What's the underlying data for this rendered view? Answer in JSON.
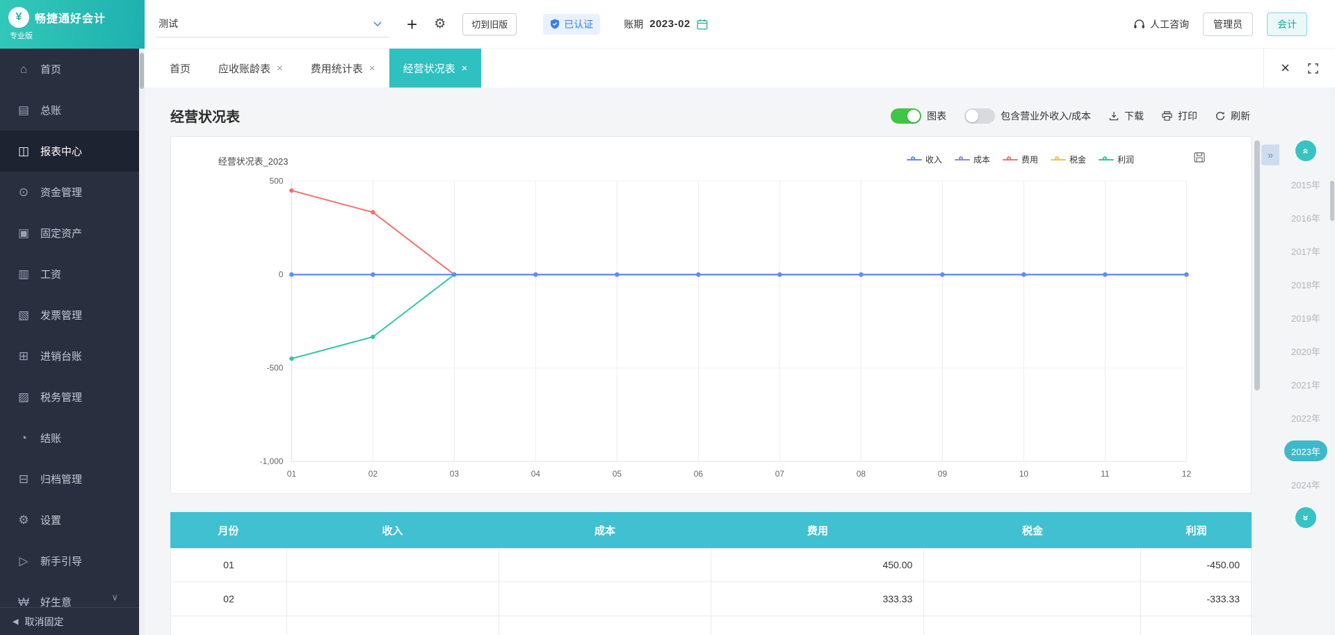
{
  "app": {
    "logo_title": "畅捷通好会计",
    "logo_subtitle": "专业版"
  },
  "icons": {
    "logo_glyph": "¥",
    "plus": "+",
    "gear": "⚙",
    "unpin": "◀",
    "more_chevron": "∨",
    "tab_close": "×",
    "panel_close": "×",
    "collapse_handle": "»",
    "scroll_up": "«",
    "scroll_down": "»"
  },
  "colors": {
    "brand_teal": "#2fc0c0",
    "sidebar_bg": "#2a2f3f",
    "table_header": "#41c0d2",
    "year_selected": "#3fb9c9",
    "toggle_on": "#41c546",
    "certified_blue": "#3a7fe8"
  },
  "sidebar": {
    "items": [
      {
        "key": "home",
        "label": "首页",
        "icon": "home-icon",
        "glyph": "⌂"
      },
      {
        "key": "general-ledger",
        "label": "总账",
        "icon": "ledger-icon",
        "glyph": "▤"
      },
      {
        "key": "report-center",
        "label": "报表中心",
        "icon": "report-chart-icon",
        "glyph": "◫",
        "active": true
      },
      {
        "key": "funds",
        "label": "资金管理",
        "icon": "funds-icon",
        "glyph": "⊙"
      },
      {
        "key": "fixed-assets",
        "label": "固定资产",
        "icon": "fixed-assets-icon",
        "glyph": "▣"
      },
      {
        "key": "payroll",
        "label": "工资",
        "icon": "payroll-icon",
        "glyph": "▥"
      },
      {
        "key": "invoice",
        "label": "发票管理",
        "icon": "invoice-icon",
        "glyph": "▧"
      },
      {
        "key": "purchase-sale",
        "label": "进销台账",
        "icon": "purchase-sale-icon",
        "glyph": "⊞"
      },
      {
        "key": "tax",
        "label": "税务管理",
        "icon": "tax-icon",
        "glyph": "▨"
      },
      {
        "key": "closing",
        "label": "结账",
        "icon": "closing-icon",
        "glyph": "◔"
      },
      {
        "key": "archive",
        "label": "归档管理",
        "icon": "archive-icon",
        "glyph": "⊟"
      },
      {
        "key": "settings",
        "label": "设置",
        "icon": "settings-icon",
        "glyph": "⚙"
      },
      {
        "key": "guide",
        "label": "新手引导",
        "icon": "guide-icon",
        "glyph": "▷"
      },
      {
        "key": "product",
        "label": "好生意",
        "icon": "product-icon",
        "glyph": "₩",
        "partial": true
      }
    ],
    "unpin_label": "取消固定"
  },
  "topbar": {
    "company": "测试",
    "switch_old_label": "切到旧版",
    "certified_label": "已认证",
    "period_label": "账期",
    "period_value": "2023-02",
    "consult_label": "人工咨询",
    "admin_label": "管理员",
    "accountant_label": "会计"
  },
  "tabs": {
    "items": [
      {
        "key": "home",
        "label": "首页",
        "closable": false
      },
      {
        "key": "receivable-aging",
        "label": "应收账龄表",
        "closable": true
      },
      {
        "key": "expense-stats",
        "label": "费用统计表",
        "closable": true
      },
      {
        "key": "operating-status",
        "label": "经营状况表",
        "closable": true,
        "active": true
      }
    ]
  },
  "report": {
    "title": "经营状况表",
    "chart_toggle_label": "图表",
    "chart_toggle_on": true,
    "include_toggle_label": "包含营业外收入/成本",
    "include_toggle_on": false,
    "download_label": "下载",
    "print_label": "打印",
    "refresh_label": "刷新"
  },
  "chart_data": {
    "type": "line",
    "title": "经营状况表_2023",
    "x": [
      "01",
      "02",
      "03",
      "04",
      "05",
      "06",
      "07",
      "08",
      "09",
      "10",
      "11",
      "12"
    ],
    "series": [
      {
        "name": "收入",
        "color": "#5b8ff9",
        "values": [
          0,
          0,
          0,
          0,
          0,
          0,
          0,
          0,
          0,
          0,
          0,
          0
        ]
      },
      {
        "name": "成本",
        "color": "#9b7fe0",
        "values": [
          0,
          0,
          0,
          0,
          0,
          0,
          0,
          0,
          0,
          0,
          0,
          0
        ]
      },
      {
        "name": "费用",
        "color": "#f5716c",
        "values": [
          450,
          333.33,
          0,
          0,
          0,
          0,
          0,
          0,
          0,
          0,
          0,
          0
        ]
      },
      {
        "name": "税金",
        "color": "#f6c243",
        "values": [
          0,
          0,
          0,
          0,
          0,
          0,
          0,
          0,
          0,
          0,
          0,
          0
        ]
      },
      {
        "name": "利润",
        "color": "#2fc7a2",
        "values": [
          -450,
          -333.33,
          0,
          0,
          0,
          0,
          0,
          0,
          0,
          0,
          0,
          0
        ]
      }
    ],
    "ylim": [
      -1000,
      500
    ],
    "yticks": [
      500,
      0,
      -500,
      -1000
    ],
    "ytick_labels": [
      "500",
      "0",
      "-500",
      "-1,000"
    ],
    "legend_position": "top-right",
    "grid": "vertical"
  },
  "year_panel": {
    "years": [
      "2015年",
      "2016年",
      "2017年",
      "2018年",
      "2019年",
      "2020年",
      "2021年",
      "2022年",
      "2023年",
      "2024年"
    ],
    "selected": "2023年"
  },
  "table": {
    "columns": [
      "月份",
      "收入",
      "成本",
      "费用",
      "税金",
      "利润"
    ],
    "rows": [
      [
        "01",
        "",
        "",
        "450.00",
        "",
        "-450.00"
      ],
      [
        "02",
        "",
        "",
        "333.33",
        "",
        "-333.33"
      ]
    ]
  }
}
